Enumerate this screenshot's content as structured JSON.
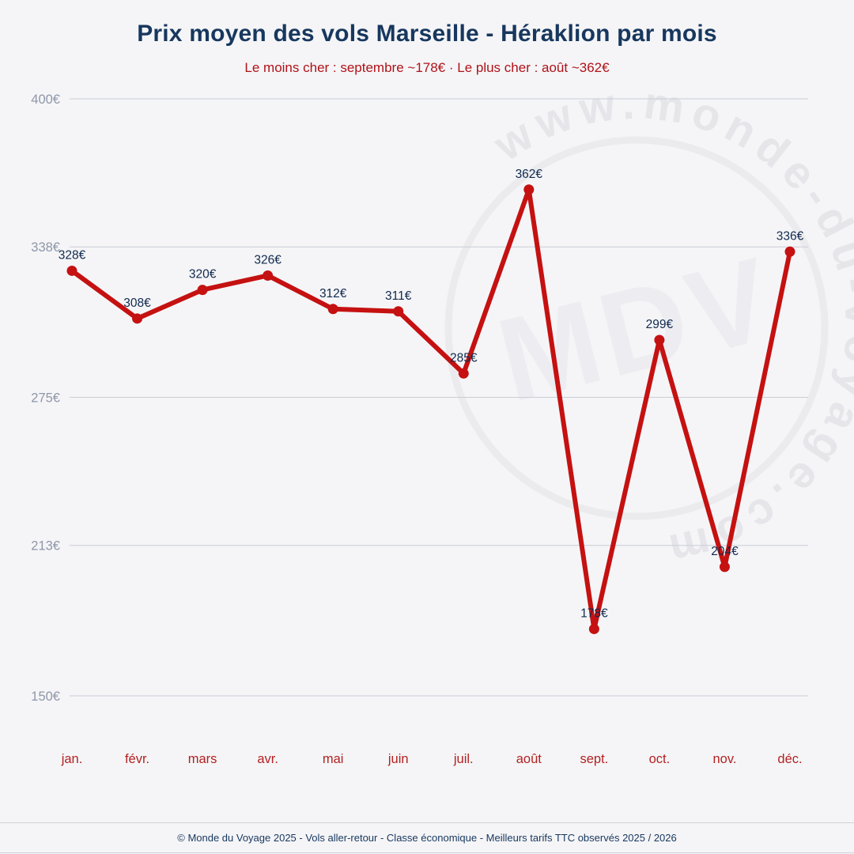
{
  "title": "Prix moyen des vols Marseille - Héraklion par mois",
  "subtitle": "Le moins cher : septembre ~178€ · Le plus cher : août ~362€",
  "footer": "© Monde du Voyage 2025 - Vols aller-retour - Classe économique - Meilleurs tarifs TTC observés 2025 / 2026",
  "watermark": "www.monde-du-voyage.com",
  "watermark_initials": "MDV",
  "colors": {
    "background": "#f5f5f7",
    "title": "#17375e",
    "subtitle": "#b01218",
    "line": "#c51111",
    "point": "#c51111",
    "point_label": "#10294e",
    "y_axis_label": "#8e97a9",
    "month_label": "#b32121",
    "grid": "#c9cdd8",
    "watermark": "#e4e4e9"
  },
  "chart_data": {
    "type": "line",
    "title": "Prix moyen des vols Marseille - Héraklion par mois",
    "xlabel": "",
    "ylabel": "",
    "grid": true,
    "legend_position": "none",
    "ylim": [
      150,
      400
    ],
    "categories": [
      "jan.",
      "févr.",
      "mars",
      "avr.",
      "mai",
      "juin",
      "juil.",
      "août",
      "sept.",
      "oct.",
      "nov.",
      "déc."
    ],
    "values": [
      328,
      308,
      320,
      326,
      312,
      311,
      285,
      362,
      178,
      299,
      204,
      336
    ],
    "value_labels": [
      "328€",
      "308€",
      "320€",
      "326€",
      "312€",
      "311€",
      "285€",
      "362€",
      "178€",
      "299€",
      "204€",
      "336€"
    ],
    "yticks": [
      {
        "value": 400,
        "label": "400€"
      },
      {
        "value": 338,
        "label": "338€"
      },
      {
        "value": 275,
        "label": "275€"
      },
      {
        "value": 213,
        "label": "213€"
      },
      {
        "value": 150,
        "label": "150€"
      }
    ],
    "min_month": "septembre",
    "min_value": 178,
    "max_month": "août",
    "max_value": 362
  }
}
